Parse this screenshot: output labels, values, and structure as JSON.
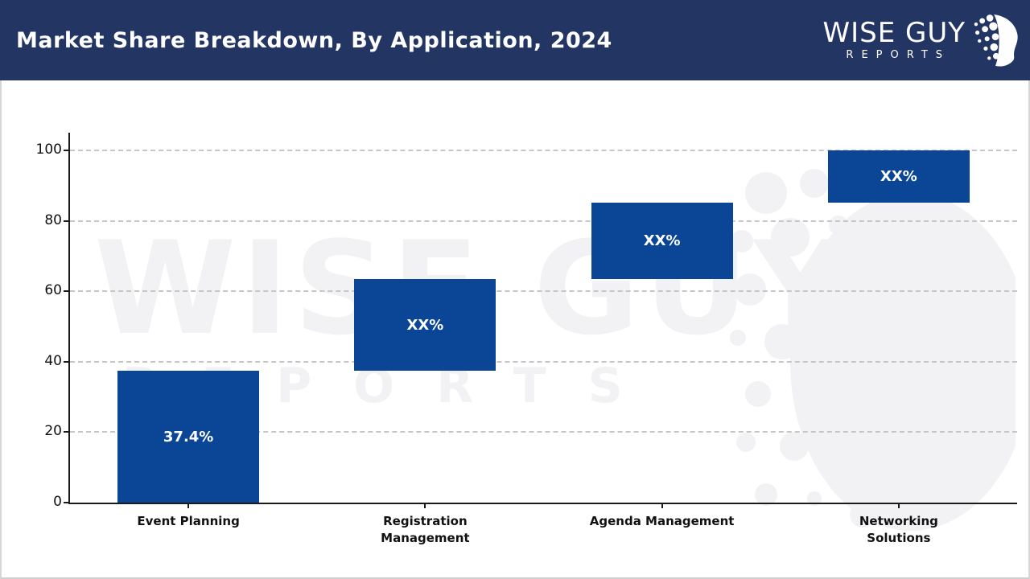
{
  "header": {
    "title": "Market Share Breakdown, By Application, 2024",
    "logo": {
      "line1": "WISE GUY",
      "line2": "REPORTS"
    }
  },
  "watermark": {
    "line1": "WISE GUY",
    "line2": "REPORTS"
  },
  "colors": {
    "header_bg": "#233562",
    "bar": "#0a4596",
    "grid": "#c6c6c6",
    "axis": "#1a1a1a",
    "watermark": "#f2f2f4"
  },
  "chart_data": {
    "type": "bar",
    "variant": "waterfall",
    "title": "Market Share Breakdown, By Application, 2024",
    "xlabel": "",
    "ylabel": "",
    "ylim": [
      0,
      100
    ],
    "yticks": [
      0,
      20,
      40,
      60,
      80,
      100
    ],
    "grid": "dashed-horizontal",
    "legend": "none",
    "bar_color": "#0a4596",
    "label_color": "#ffffff",
    "categories": [
      "Event Planning",
      "Registration\nManagement",
      "Agenda Management",
      "Networking\nSolutions"
    ],
    "segments": [
      {
        "category": "Event Planning",
        "start": 0,
        "end": 37.4,
        "label": "37.4%"
      },
      {
        "category": "Registration\nManagement",
        "start": 37.4,
        "end": 63.5,
        "label": "XX%"
      },
      {
        "category": "Agenda Management",
        "start": 63.5,
        "end": 85.1,
        "label": "XX%"
      },
      {
        "category": "Networking\nSolutions",
        "start": 85.1,
        "end": 100,
        "label": "XX%"
      }
    ]
  }
}
